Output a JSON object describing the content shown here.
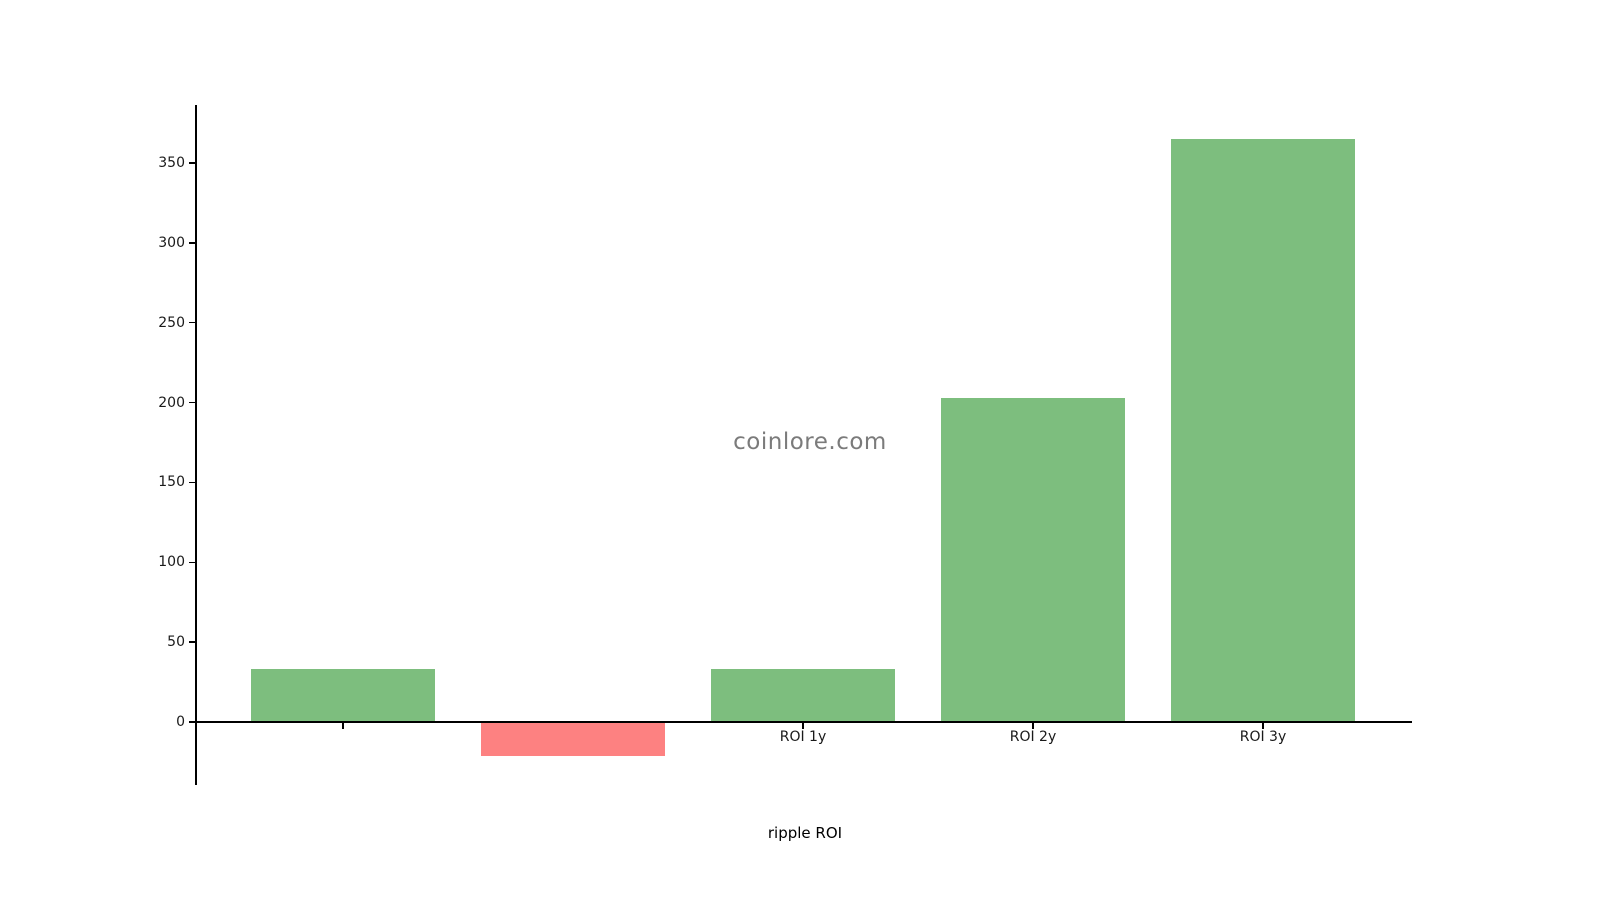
{
  "page": {
    "background": "#ffffff"
  },
  "chart_data": {
    "type": "bar",
    "title": "",
    "xlabel": "ripple ROI",
    "ylabel": "",
    "categories": [
      "",
      "",
      "ROI 1y",
      "ROI 2y",
      "ROI 3y"
    ],
    "values": [
      33,
      -21,
      33,
      203,
      365
    ],
    "yticks": [
      0,
      50,
      100,
      150,
      200,
      250,
      300,
      350
    ],
    "ylim": [
      -40,
      386
    ],
    "grid": false,
    "legend": false,
    "watermark": "coinlore.com",
    "colors": {
      "positive_bar": "#7dbe7e",
      "negative_bar": "#fd8181",
      "axis": "#000000",
      "tick_label": "#1a1a1a",
      "watermark": "#7b7b7b"
    }
  }
}
